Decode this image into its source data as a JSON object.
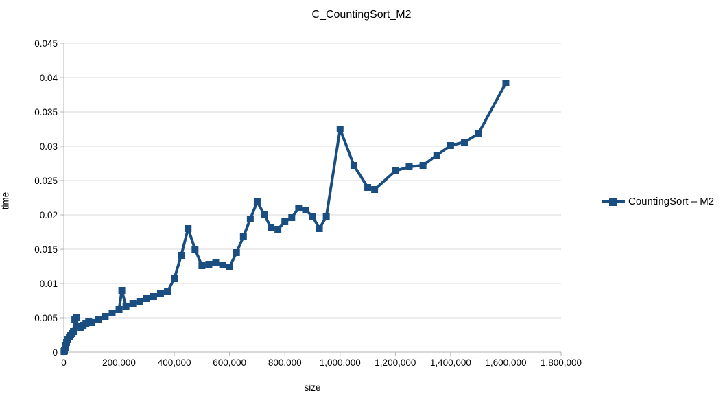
{
  "chart": {
    "title": "C_CountingSort_M2",
    "x_axis_title": "size",
    "y_axis_title": "time",
    "legend": {
      "label": "CountingSort – M2"
    }
  },
  "colors": {
    "series": "#1A4E80",
    "gridline": "#D9D9D9",
    "axis_line": "#B3B3B3",
    "text": "#000000",
    "background": "#FFFFFF"
  },
  "chart_data": {
    "type": "line",
    "title": "C_CountingSort_M2",
    "xlabel": "size",
    "ylabel": "time",
    "legend_position": "right",
    "grid": "horizontal-only",
    "marker": "square",
    "xlim": [
      0,
      1800000
    ],
    "ylim": [
      0,
      0.045
    ],
    "x_ticks": [
      0,
      200000,
      400000,
      600000,
      800000,
      1000000,
      1200000,
      1400000,
      1600000,
      1800000
    ],
    "x_tick_labels": [
      "0",
      "200,000",
      "400,000",
      "600,000",
      "800,000",
      "1,000,000",
      "1,200,000",
      "1,400,000",
      "1,600,000",
      "1,800,000"
    ],
    "y_ticks": [
      0,
      0.005,
      0.01,
      0.015,
      0.02,
      0.025,
      0.03,
      0.035,
      0.04,
      0.045
    ],
    "y_tick_labels": [
      "0",
      "0.005",
      "0.01",
      "0.015",
      "0.02",
      "0.025",
      "0.03",
      "0.035",
      "0.04",
      "0.045"
    ],
    "series": [
      {
        "name": "CountingSort – M2",
        "x": [
          1000,
          2500,
          5000,
          7500,
          10000,
          15000,
          20000,
          25000,
          30000,
          35000,
          40000,
          45000,
          50000,
          60000,
          70000,
          80000,
          90000,
          100000,
          125000,
          150000,
          175000,
          200000,
          210000,
          225000,
          250000,
          275000,
          300000,
          325000,
          350000,
          375000,
          400000,
          425000,
          450000,
          475000,
          500000,
          525000,
          550000,
          575000,
          600000,
          625000,
          650000,
          675000,
          700000,
          725000,
          750000,
          775000,
          800000,
          825000,
          850000,
          875000,
          900000,
          925000,
          950000,
          1000000,
          1050000,
          1100000,
          1125000,
          1200000,
          1250000,
          1300000,
          1350000,
          1400000,
          1450000,
          1500000,
          1600000
        ],
        "y": [
          0.0001,
          0.0002,
          0.0006,
          0.001,
          0.0014,
          0.0018,
          0.0022,
          0.0025,
          0.0027,
          0.003,
          0.0048,
          0.005,
          0.0038,
          0.0036,
          0.0039,
          0.0042,
          0.0045,
          0.0043,
          0.0048,
          0.0052,
          0.0057,
          0.0062,
          0.009,
          0.0067,
          0.0071,
          0.0074,
          0.0078,
          0.0081,
          0.0086,
          0.0088,
          0.0107,
          0.0141,
          0.018,
          0.015,
          0.0126,
          0.0128,
          0.013,
          0.0127,
          0.0124,
          0.0145,
          0.0168,
          0.0194,
          0.0219,
          0.0201,
          0.0181,
          0.0179,
          0.019,
          0.0196,
          0.021,
          0.0207,
          0.0198,
          0.018,
          0.0197,
          0.0325,
          0.0272,
          0.024,
          0.0237,
          0.0264,
          0.027,
          0.0272,
          0.0287,
          0.0301,
          0.0306,
          0.0318,
          0.0392
        ]
      }
    ]
  }
}
